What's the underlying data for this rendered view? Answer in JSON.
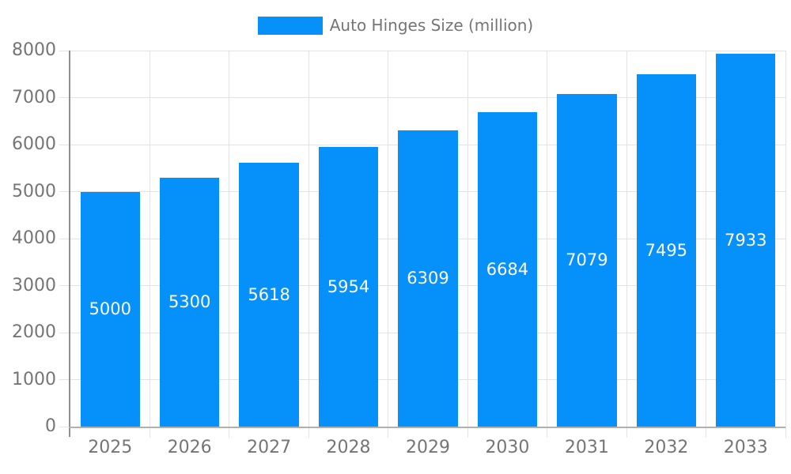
{
  "chart_data": {
    "type": "bar",
    "title": "",
    "legend": {
      "position": "top"
    },
    "categories": [
      "2025",
      "2026",
      "2027",
      "2028",
      "2029",
      "2030",
      "2031",
      "2032",
      "2033"
    ],
    "series": [
      {
        "name": "Auto Hinges Size (million)",
        "values": [
          5000,
          5300,
          5618,
          5954,
          6309,
          6684,
          7079,
          7495,
          7933
        ]
      }
    ],
    "bar_value_labels": [
      5000,
      5300,
      5618,
      5954,
      6309,
      6684,
      7079,
      7495,
      7933
    ],
    "xlabel": "",
    "ylabel": "",
    "ylim": [
      0,
      8000
    ],
    "yticks": [
      0,
      1000,
      2000,
      3000,
      4000,
      5000,
      6000,
      7000,
      8000
    ],
    "grid": true,
    "colors": {
      "bar": "#0690FA",
      "bar_label": "#ffffff",
      "gridline": "#e3e3e3",
      "axis_line_y": "#8f8f8f",
      "axis_line_x": "#b0b0b0",
      "tick_label": "#757575",
      "legend_text": "#757575",
      "background": "#ffffff"
    }
  }
}
